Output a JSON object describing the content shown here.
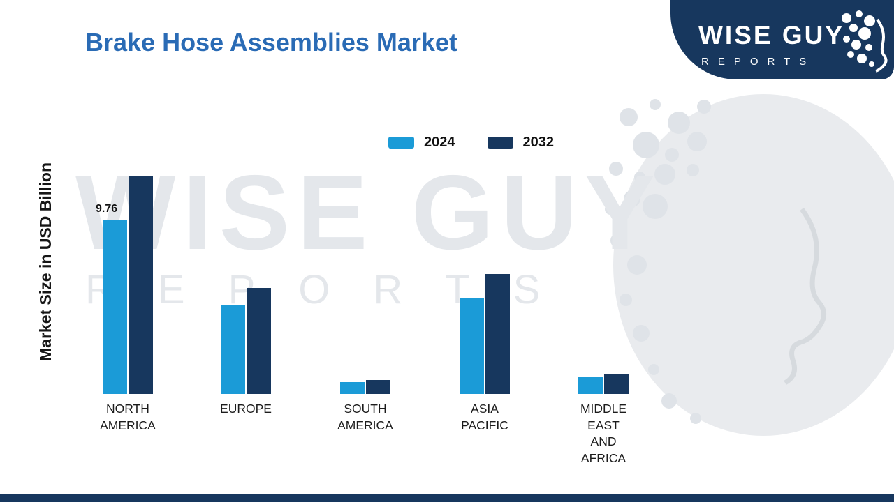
{
  "title": "Brake Hose Assemblies Market",
  "logo": {
    "name": "WISE GUY",
    "sub": "REPORTS"
  },
  "watermark": {
    "line1": "WISE GUY",
    "line2": "REPORTS"
  },
  "colors": {
    "title": "#2a6bb5",
    "series_2024": "#1b9bd7",
    "series_2032": "#17375e",
    "footer": "#17375e",
    "logo_panel": "#17375e"
  },
  "chart_data": {
    "type": "bar",
    "title": "Brake Hose Assemblies Market",
    "ylabel": "Market Size in USD Billion",
    "xlabel": "",
    "ylim": [
      0,
      13
    ],
    "grid": false,
    "legend_position": "top",
    "categories": [
      "NORTH AMERICA",
      "EUROPE",
      "SOUTH AMERICA",
      "ASIA PACIFIC",
      "MIDDLE EAST AND AFRICA"
    ],
    "category_labels": [
      "NORTH\nAMERICA",
      "EUROPE",
      "SOUTH\nAMERICA",
      "ASIA\nPACIFIC",
      "MIDDLE\nEAST\nAND\nAFRICA"
    ],
    "series": [
      {
        "name": "2024",
        "color": "#1b9bd7",
        "values": [
          9.76,
          4.95,
          0.66,
          5.35,
          0.95
        ]
      },
      {
        "name": "2032",
        "color": "#17375e",
        "values": [
          12.2,
          5.93,
          0.8,
          6.72,
          1.15
        ]
      }
    ],
    "annotation": {
      "text": "9.76",
      "category_index": 0,
      "series_index": 0
    }
  }
}
